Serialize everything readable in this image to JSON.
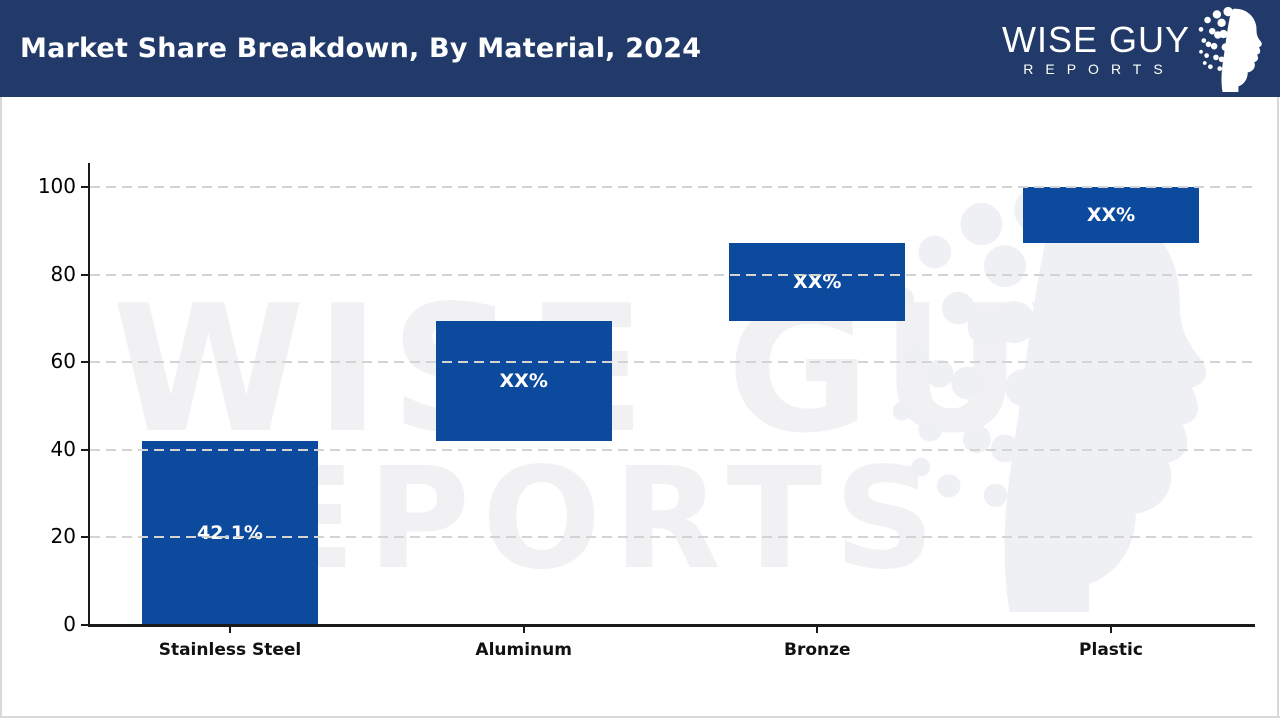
{
  "header": {
    "title": "Market Share Breakdown, By Material, 2024",
    "brand": {
      "name": "WISE GUY",
      "subtitle": "REPORTS"
    }
  },
  "watermark": {
    "line1": "WISE GUY",
    "line2": "REPORTS"
  },
  "chart_data": {
    "type": "bar",
    "subtype": "waterfall",
    "title": "Market Share Breakdown, By Material, 2024",
    "categories": [
      "Stainless Steel",
      "Aluminum",
      "Bronze",
      "Plastic"
    ],
    "segments": [
      {
        "category": "Stainless Steel",
        "start": 0,
        "end": 42.1,
        "value": 42.1,
        "label": "42.1%"
      },
      {
        "category": "Aluminum",
        "start": 42.1,
        "end": 69.5,
        "value": 27.4,
        "label": "XX%"
      },
      {
        "category": "Bronze",
        "start": 69.5,
        "end": 87.3,
        "value": 17.8,
        "label": "XX%"
      },
      {
        "category": "Plastic",
        "start": 87.3,
        "end": 100,
        "value": 12.7,
        "label": "XX%"
      }
    ],
    "unit": "%",
    "ylim": [
      0,
      105
    ],
    "yticks": [
      0,
      20,
      40,
      60,
      80,
      100
    ],
    "grid": "horizontal-dashed",
    "legend": "none",
    "bar_color": "#0c4a9e",
    "bar_label_color": "#ffffff",
    "colors": {
      "header_bg": "#213a69",
      "grid": "#d4d4d4",
      "axis": "#1a1a1a",
      "watermark": "#f1f1f4"
    }
  }
}
